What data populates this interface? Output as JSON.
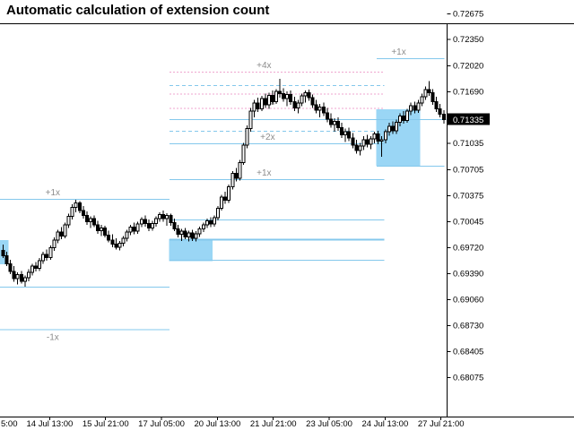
{
  "window": {
    "title": "Automatic calculation of extension count"
  },
  "colors": {
    "background": "#FFFFFF",
    "level_blue": "#84C8EC",
    "level_pink": "#EFA6CF",
    "zone_fill": "#9AD6F5",
    "annotation": "#8C8C8C",
    "candle_up_fill": "#FFFFFF",
    "candle_down_fill": "#000000",
    "candle_outline": "#000000",
    "axis_line": "#000000",
    "axis_text": "#000000",
    "current_price_bg": "#000000",
    "current_price_text": "#FFFFFF"
  },
  "chart_data": {
    "type": "candlestick",
    "title": "Automatic calculation of extension count",
    "y_axis": {
      "min": 0.68075,
      "max": 0.72675,
      "visible_labels": [
        "0.72675",
        "0.72350",
        "0.72020",
        "0.71690",
        "0.71035",
        "0.70705",
        "0.70375",
        "0.70045",
        "0.69720",
        "0.69390",
        "0.69060",
        "0.68730",
        "0.68405",
        "0.68075"
      ],
      "current_price": "0.71335"
    },
    "x_axis": {
      "labels": [
        "5:00",
        "14 Jul 13:00",
        "15 Jul 21:00",
        "17 Jul 05:00",
        "20 Jul 13:00",
        "21 Jul 21:00",
        "23 Jul 05:00",
        "24 Jul 13:00",
        "27 Jul 21:00"
      ]
    },
    "candles_ohlc": [
      [
        0.6968,
        0.6975,
        0.6958,
        0.6961
      ],
      [
        0.6961,
        0.6966,
        0.6948,
        0.6951
      ],
      [
        0.6951,
        0.6956,
        0.6938,
        0.6941
      ],
      [
        0.6941,
        0.6948,
        0.6928,
        0.6932
      ],
      [
        0.6932,
        0.694,
        0.6925,
        0.6937
      ],
      [
        0.6937,
        0.6942,
        0.6926,
        0.6929
      ],
      [
        0.6929,
        0.6936,
        0.6922,
        0.6933
      ],
      [
        0.6933,
        0.6944,
        0.6929,
        0.694
      ],
      [
        0.694,
        0.6951,
        0.6936,
        0.6948
      ],
      [
        0.6948,
        0.6953,
        0.6941,
        0.6945
      ],
      [
        0.6945,
        0.6958,
        0.6942,
        0.6955
      ],
      [
        0.6955,
        0.6966,
        0.6951,
        0.6963
      ],
      [
        0.6963,
        0.6969,
        0.6955,
        0.6959
      ],
      [
        0.6959,
        0.6974,
        0.6956,
        0.6971
      ],
      [
        0.6971,
        0.6984,
        0.6967,
        0.6981
      ],
      [
        0.6981,
        0.6994,
        0.6977,
        0.6991
      ],
      [
        0.6991,
        0.6997,
        0.6982,
        0.6986
      ],
      [
        0.6986,
        0.7003,
        0.6983,
        0.7
      ],
      [
        0.7,
        0.7014,
        0.6996,
        0.7011
      ],
      [
        0.7011,
        0.7026,
        0.7007,
        0.7022
      ],
      [
        0.7022,
        0.7032,
        0.7016,
        0.7028
      ],
      [
        0.7028,
        0.703,
        0.7015,
        0.7018
      ],
      [
        0.7018,
        0.7024,
        0.7008,
        0.7012
      ],
      [
        0.7012,
        0.7017,
        0.7,
        0.7004
      ],
      [
        0.7004,
        0.7011,
        0.6996,
        0.7008
      ],
      [
        0.7008,
        0.7012,
        0.6997,
        0.7
      ],
      [
        0.7,
        0.7005,
        0.6989,
        0.6993
      ],
      [
        0.6993,
        0.7,
        0.6986,
        0.6996
      ],
      [
        0.6996,
        0.6999,
        0.6984,
        0.6987
      ],
      [
        0.6987,
        0.6993,
        0.6978,
        0.6981
      ],
      [
        0.6981,
        0.6988,
        0.6972,
        0.6976
      ],
      [
        0.6976,
        0.6983,
        0.6969,
        0.6972
      ],
      [
        0.6972,
        0.698,
        0.6968,
        0.6977
      ],
      [
        0.6977,
        0.6986,
        0.6973,
        0.6983
      ],
      [
        0.6983,
        0.6994,
        0.6979,
        0.6991
      ],
      [
        0.6991,
        0.7,
        0.6987,
        0.6997
      ],
      [
        0.6997,
        0.7003,
        0.6988,
        0.6992
      ],
      [
        0.6992,
        0.7004,
        0.6989,
        0.7001
      ],
      [
        0.7001,
        0.701,
        0.6997,
        0.7007
      ],
      [
        0.7007,
        0.7012,
        0.6998,
        0.7002
      ],
      [
        0.7002,
        0.7007,
        0.6992,
        0.6996
      ],
      [
        0.6996,
        0.7005,
        0.6993,
        0.7002
      ],
      [
        0.7002,
        0.7011,
        0.6998,
        0.7008
      ],
      [
        0.7008,
        0.7016,
        0.7004,
        0.7013
      ],
      [
        0.7013,
        0.7018,
        0.7004,
        0.7008
      ],
      [
        0.7008,
        0.7015,
        0.6999,
        0.7012
      ],
      [
        0.7012,
        0.7014,
        0.6999,
        0.7003
      ],
      [
        0.7003,
        0.7008,
        0.6992,
        0.6995
      ],
      [
        0.6995,
        0.7,
        0.6984,
        0.6988
      ],
      [
        0.6988,
        0.6995,
        0.698,
        0.6992
      ],
      [
        0.6992,
        0.6996,
        0.6982,
        0.6985
      ],
      [
        0.6985,
        0.6993,
        0.6979,
        0.699
      ],
      [
        0.699,
        0.6994,
        0.698,
        0.6983
      ],
      [
        0.6983,
        0.6992,
        0.6979,
        0.6989
      ],
      [
        0.6989,
        0.6998,
        0.6985,
        0.6995
      ],
      [
        0.6995,
        0.7003,
        0.6991,
        0.7
      ],
      [
        0.7,
        0.7008,
        0.6996,
        0.7005
      ],
      [
        0.7005,
        0.701,
        0.6997,
        0.7001
      ],
      [
        0.7001,
        0.7012,
        0.6998,
        0.7009
      ],
      [
        0.7009,
        0.7024,
        0.7006,
        0.7021
      ],
      [
        0.7021,
        0.7038,
        0.7018,
        0.7035
      ],
      [
        0.7035,
        0.7042,
        0.7027,
        0.7031
      ],
      [
        0.7031,
        0.7051,
        0.7028,
        0.7048
      ],
      [
        0.7048,
        0.7068,
        0.7045,
        0.7065
      ],
      [
        0.7065,
        0.7072,
        0.7055,
        0.7059
      ],
      [
        0.7059,
        0.7082,
        0.7056,
        0.7079
      ],
      [
        0.7079,
        0.7104,
        0.7076,
        0.7101
      ],
      [
        0.7101,
        0.7126,
        0.7097,
        0.7122
      ],
      [
        0.7122,
        0.7148,
        0.7118,
        0.7144
      ],
      [
        0.7144,
        0.7158,
        0.7136,
        0.7154
      ],
      [
        0.7154,
        0.7161,
        0.7143,
        0.7147
      ],
      [
        0.7147,
        0.7163,
        0.7144,
        0.716
      ],
      [
        0.716,
        0.7166,
        0.7148,
        0.7152
      ],
      [
        0.7152,
        0.7167,
        0.7147,
        0.7164
      ],
      [
        0.7164,
        0.717,
        0.7152,
        0.7156
      ],
      [
        0.7156,
        0.7172,
        0.7153,
        0.7169
      ],
      [
        0.7169,
        0.7185,
        0.7161,
        0.7166
      ],
      [
        0.7166,
        0.7173,
        0.7156,
        0.716
      ],
      [
        0.716,
        0.7169,
        0.715,
        0.7165
      ],
      [
        0.7165,
        0.717,
        0.7152,
        0.7156
      ],
      [
        0.7156,
        0.7162,
        0.7144,
        0.7148
      ],
      [
        0.7148,
        0.7158,
        0.7141,
        0.7154
      ],
      [
        0.7154,
        0.7166,
        0.715,
        0.7163
      ],
      [
        0.7163,
        0.717,
        0.7155,
        0.7167
      ],
      [
        0.7167,
        0.7171,
        0.7157,
        0.7161
      ],
      [
        0.7161,
        0.7165,
        0.7148,
        0.7152
      ],
      [
        0.7152,
        0.7158,
        0.7141,
        0.7145
      ],
      [
        0.7145,
        0.7153,
        0.7136,
        0.7149
      ],
      [
        0.7149,
        0.7155,
        0.7138,
        0.7142
      ],
      [
        0.7142,
        0.7148,
        0.713,
        0.7134
      ],
      [
        0.7134,
        0.7141,
        0.7123,
        0.7127
      ],
      [
        0.7127,
        0.7135,
        0.7118,
        0.7131
      ],
      [
        0.7131,
        0.7136,
        0.7119,
        0.7123
      ],
      [
        0.7123,
        0.7129,
        0.711,
        0.7114
      ],
      [
        0.7114,
        0.7122,
        0.7105,
        0.7118
      ],
      [
        0.7118,
        0.7123,
        0.7106,
        0.711
      ],
      [
        0.711,
        0.7116,
        0.7097,
        0.7101
      ],
      [
        0.7101,
        0.7108,
        0.709,
        0.7094
      ],
      [
        0.7094,
        0.7104,
        0.7088,
        0.71
      ],
      [
        0.71,
        0.7112,
        0.7095,
        0.7108
      ],
      [
        0.7108,
        0.7114,
        0.7098,
        0.7102
      ],
      [
        0.7102,
        0.7112,
        0.7096,
        0.7109
      ],
      [
        0.7109,
        0.7118,
        0.7103,
        0.7115
      ],
      [
        0.7115,
        0.7119,
        0.7102,
        0.7106
      ],
      [
        0.7106,
        0.7112,
        0.7086,
        0.7108
      ],
      [
        0.7108,
        0.7121,
        0.7103,
        0.7118
      ],
      [
        0.7118,
        0.7129,
        0.7113,
        0.7125
      ],
      [
        0.7125,
        0.7131,
        0.7115,
        0.7119
      ],
      [
        0.7119,
        0.7133,
        0.7115,
        0.713
      ],
      [
        0.713,
        0.7141,
        0.7125,
        0.7138
      ],
      [
        0.7138,
        0.7144,
        0.7128,
        0.7132
      ],
      [
        0.7132,
        0.7147,
        0.7129,
        0.7144
      ],
      [
        0.7144,
        0.7155,
        0.7139,
        0.7151
      ],
      [
        0.7151,
        0.7156,
        0.7141,
        0.7145
      ],
      [
        0.7145,
        0.7158,
        0.7142,
        0.7154
      ],
      [
        0.7154,
        0.7166,
        0.715,
        0.7162
      ],
      [
        0.7162,
        0.7175,
        0.7158,
        0.7171
      ],
      [
        0.7171,
        0.7182,
        0.7163,
        0.7167
      ],
      [
        0.7167,
        0.7172,
        0.7152,
        0.7156
      ],
      [
        0.7156,
        0.7162,
        0.7143,
        0.7147
      ],
      [
        0.7147,
        0.7153,
        0.7136,
        0.714
      ],
      [
        0.714,
        0.7145,
        0.7128,
        0.71335
      ]
    ],
    "extension_levels": [
      {
        "price": 0.7211,
        "from": 103,
        "to": 121.5,
        "color": "blue",
        "style": "solid",
        "w": 1
      },
      {
        "price": 0.7194,
        "from": 46,
        "to": 105,
        "color": "pink",
        "style": "dashed",
        "w": 1
      },
      {
        "price": 0.7177,
        "from": 46,
        "to": 105,
        "color": "blue",
        "style": "dashed",
        "w": 1
      },
      {
        "price": 0.7166,
        "from": 46,
        "to": 105,
        "color": "pink",
        "style": "dashed",
        "w": 1
      },
      {
        "price": 0.7148,
        "from": 46,
        "to": 105,
        "color": "pink",
        "style": "dashed",
        "w": 1
      },
      {
        "price": 0.7134,
        "from": 46,
        "to": 122,
        "color": "blue",
        "style": "solid",
        "w": 1
      },
      {
        "price": 0.7119,
        "from": 46,
        "to": 105,
        "color": "blue",
        "style": "dashed",
        "w": 1
      },
      {
        "price": 0.7103,
        "from": 46,
        "to": 105,
        "color": "blue",
        "style": "solid",
        "w": 1
      },
      {
        "price": 0.7058,
        "from": 46,
        "to": 105,
        "color": "blue",
        "style": "solid",
        "w": 1
      },
      {
        "price": 0.7007,
        "from": 46,
        "to": 105,
        "color": "blue",
        "style": "solid",
        "w": 1
      },
      {
        "price": 0.6982,
        "from": 46,
        "to": 105,
        "color": "blue",
        "style": "solid",
        "w": 2
      },
      {
        "price": 0.6956,
        "from": 46,
        "to": 105,
        "color": "blue",
        "style": "solid",
        "w": 1
      },
      {
        "price": 0.7033,
        "from": -1,
        "to": 46,
        "color": "blue",
        "style": "solid",
        "w": 1
      },
      {
        "price": 0.6922,
        "from": -1,
        "to": 46,
        "color": "blue",
        "style": "solid",
        "w": 1
      },
      {
        "price": 0.6868,
        "from": -1,
        "to": 46,
        "color": "blue",
        "style": "solid",
        "w": 1
      },
      {
        "price": 0.7075,
        "from": 103,
        "to": 121.5,
        "color": "blue",
        "style": "solid",
        "w": 1
      }
    ],
    "zones": [
      {
        "from": -2,
        "to": 1,
        "top": 0.6981,
        "bottom": 0.695
      },
      {
        "from": 46,
        "to": 57,
        "top": 0.6982,
        "bottom": 0.6954
      },
      {
        "from": 103,
        "to": 114,
        "top": 0.7146,
        "bottom": 0.7075
      }
    ],
    "annotations": [
      {
        "text": "+1x",
        "bar": 109,
        "price": 0.7211,
        "pos": "above"
      },
      {
        "text": "+4x",
        "bar": 72,
        "price": 0.7194,
        "pos": "above"
      },
      {
        "text": "+3x",
        "bar": 73,
        "price": 0.7148,
        "pos": "above"
      },
      {
        "text": "+2x",
        "bar": 73,
        "price": 0.7103,
        "pos": "above"
      },
      {
        "text": "+1x",
        "bar": 72,
        "price": 0.7058,
        "pos": "above"
      },
      {
        "text": "+1x",
        "bar": 14,
        "price": 0.7033,
        "pos": "above"
      },
      {
        "text": "-1x",
        "bar": 14,
        "price": 0.6868,
        "pos": "below"
      }
    ]
  }
}
